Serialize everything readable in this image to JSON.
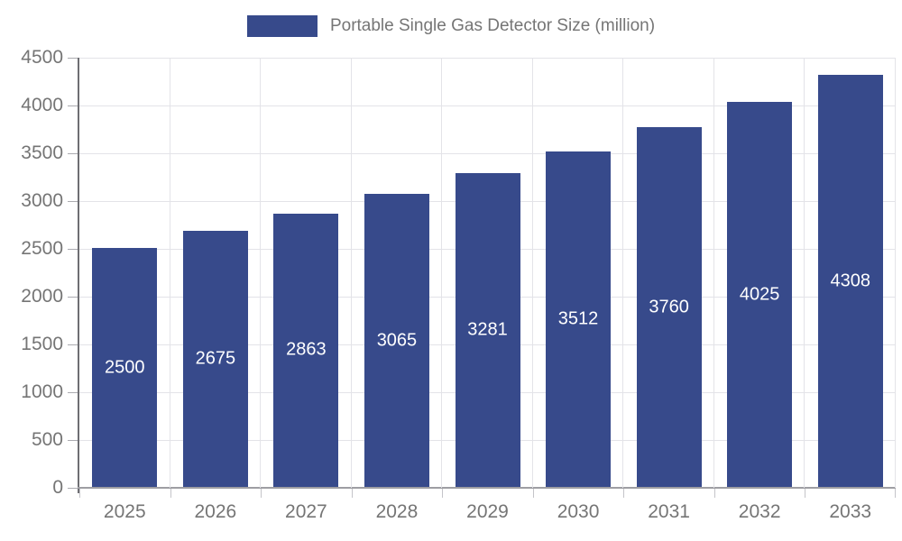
{
  "legend": {
    "label": "Portable Single Gas Detector Size (million)"
  },
  "chart_data": {
    "type": "bar",
    "title": "Portable Single Gas Detector Size (million)",
    "categories": [
      "2025",
      "2026",
      "2027",
      "2028",
      "2029",
      "2030",
      "2031",
      "2032",
      "2033"
    ],
    "values": [
      2500,
      2675,
      2863,
      3065,
      3281,
      3512,
      3760,
      4025,
      4308
    ],
    "xlabel": "",
    "ylabel": "",
    "ylim": [
      0,
      4500
    ],
    "ytick_step": 500,
    "yticks": [
      "0",
      "500",
      "1000",
      "1500",
      "2000",
      "2500",
      "3000",
      "3500",
      "4000",
      "4500"
    ],
    "grid": true,
    "legend_position": "top-center",
    "bar_label_position": "inside-center",
    "colors": {
      "bar": "#374A8B",
      "bar_label": "#FFFFFF",
      "axis_text": "#757575",
      "legend_text": "#757575",
      "grid_line": "#E3E3E8",
      "y_axis_line": "#6E6E73",
      "x_axis_line": "#9E9EA3",
      "background": "#FFFFFF"
    }
  }
}
